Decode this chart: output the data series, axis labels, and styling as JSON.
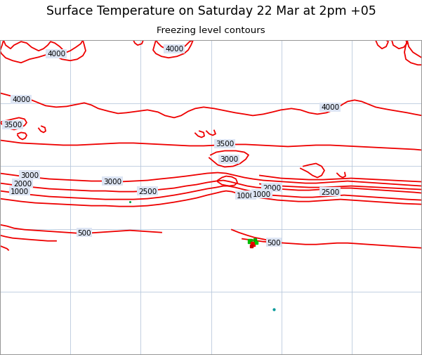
{
  "title": "Surface Temperature on Saturday 22 Mar at 2pm +05",
  "subtitle": "Freezing level contours",
  "map_bg_color": "#dde5f4",
  "contour_color": "#ee0000",
  "contour_linewidth": 1.3,
  "title_fontsize": 12.5,
  "subtitle_fontsize": 9.5,
  "grid_color": "#b8c8dc",
  "grid_linewidth": 0.6,
  "header_bg": "#ffffff",
  "label_bg": "#dde5f4"
}
